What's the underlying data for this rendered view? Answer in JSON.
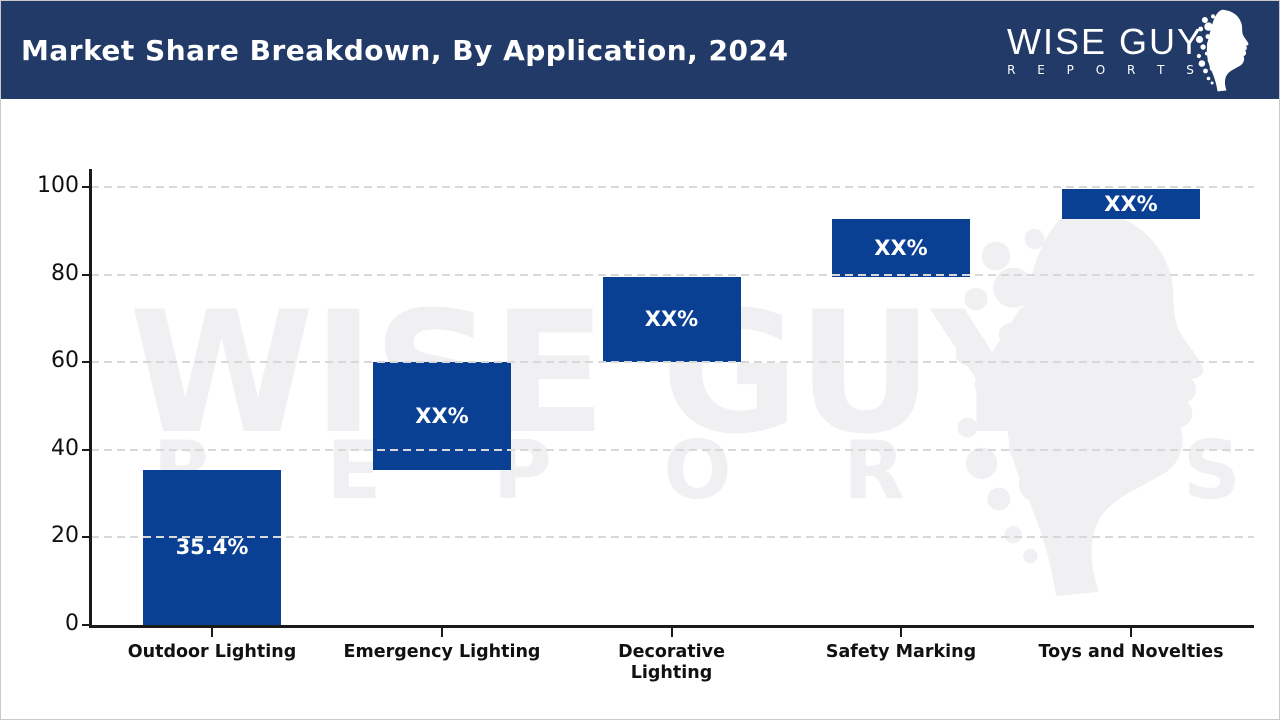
{
  "header": {
    "title": "Market Share Breakdown, By Application, 2024",
    "logo": {
      "name_line": "WISE GUY",
      "sub_line": "R E P O R T S"
    }
  },
  "watermark": {
    "line1": "WISE GUY",
    "line2": "R E P O R T S"
  },
  "colors": {
    "header_bg": "#213a68",
    "bar": "#0a4094",
    "gridline": "#d8d8d8",
    "axis": "#1a1a1a",
    "watermark": "#f0f0f2",
    "bar_label_text": "#ffffff"
  },
  "chart_data": {
    "type": "bar",
    "subtype": "waterfall",
    "title": "Market Share Breakdown, By Application, 2024",
    "categories": [
      "Outdoor Lighting",
      "Emergency Lighting",
      "Decorative Lighting",
      "Safety Marking",
      "Toys and Novelties"
    ],
    "category_lines": [
      [
        "Outdoor Lighting"
      ],
      [
        "Emergency Lighting"
      ],
      [
        "Decorative",
        "Lighting"
      ],
      [
        "Safety Marking"
      ],
      [
        "Toys and Novelties"
      ]
    ],
    "segments": [
      {
        "category": "Outdoor Lighting",
        "start": 0,
        "end": 35.4,
        "label": "35.4%"
      },
      {
        "category": "Emergency Lighting",
        "start": 35.4,
        "end": 60,
        "label": "XX%"
      },
      {
        "category": "Decorative Lighting",
        "start": 60,
        "end": 79.5,
        "label": "XX%"
      },
      {
        "category": "Safety Marking",
        "start": 79.5,
        "end": 92.7,
        "label": "XX%"
      },
      {
        "category": "Toys and Novelties",
        "start": 92.7,
        "end": 99.6,
        "label": "XX%"
      }
    ],
    "y_ticks": [
      0,
      20,
      40,
      60,
      80,
      100
    ],
    "ylim": [
      0,
      100
    ],
    "xlabel": "",
    "ylabel": "",
    "grid": "dashed horizontal",
    "legend": "none"
  }
}
